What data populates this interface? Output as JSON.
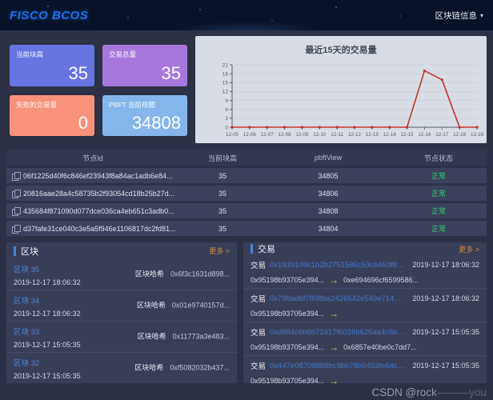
{
  "header": {
    "logo": "FISCO BCOS",
    "menu_label": "区块链信息"
  },
  "icons": {
    "chevron_down": "▾",
    "arrow_right": "→"
  },
  "stats": {
    "cards": [
      {
        "label": "当前块高",
        "value": "35",
        "color": "#6774e2"
      },
      {
        "label": "交易总量",
        "value": "35",
        "color": "#a678dd"
      },
      {
        "label": "失败的交易量",
        "value": "0",
        "color": "#f8927a"
      },
      {
        "label": "PBFT 当前视图",
        "value": "34808",
        "color": "#84b6eb"
      }
    ]
  },
  "chart_data": {
    "type": "line",
    "title": "最近15天的交易量",
    "categories": [
      "12-05",
      "12-06",
      "12-07",
      "12-08",
      "12-09",
      "12-10",
      "12-11",
      "12-12",
      "12-13",
      "12-14",
      "12-15",
      "12-16",
      "12-17",
      "12-18",
      "12-19"
    ],
    "values": [
      0,
      0,
      0,
      0,
      0,
      0,
      0,
      0,
      0,
      0,
      0,
      19,
      16,
      0,
      0
    ],
    "xlabel": "",
    "ylabel": "",
    "ylim": [
      0,
      21
    ],
    "yticks": [
      0,
      3,
      6,
      9,
      12,
      15,
      18,
      21
    ],
    "line_color": "#c23531",
    "grid": true,
    "legend": false
  },
  "node_table": {
    "columns": [
      "节点Id",
      "当前块高",
      "pbftView",
      "节点状态"
    ],
    "rows": [
      {
        "id": "06f1225d40f6c846ef23943f8a84ac1adb6e84...",
        "block_height": "35",
        "pbft_view": "34805",
        "status": "正常"
      },
      {
        "id": "20816aae28a4c58735b2f93054cd18b25b27d...",
        "block_height": "35",
        "pbft_view": "34806",
        "status": "正常"
      },
      {
        "id": "435684f871090d077dce036ca4eb651c3adb0...",
        "block_height": "35",
        "pbft_view": "34808",
        "status": "正常"
      },
      {
        "id": "d37fafe31ce040c3e5a5f946e1106817dc2fd81...",
        "block_height": "35",
        "pbft_view": "34804",
        "status": "正常"
      }
    ]
  },
  "blocks_panel": {
    "title": "区块",
    "more": "更多 >",
    "hash_label": "区块哈希",
    "items": [
      {
        "block_label": "区块 35",
        "time": "2019-12-17 18:06:32",
        "hash": "0x6f3c1631d898..."
      },
      {
        "block_label": "区块 34",
        "time": "2019-12-17 18:06:32",
        "hash": "0x01e9740157d..."
      },
      {
        "block_label": "区块 33",
        "time": "2019-12-17 15:05:35",
        "hash": "0x11773a3e483..."
      },
      {
        "block_label": "区块 32",
        "time": "2019-12-17 15:05:35",
        "hash": "0xf5082032b437..."
      }
    ]
  },
  "tx_panel": {
    "title": "交易",
    "more": "更多 >",
    "item_label": "交易",
    "items": [
      {
        "hash": "0x1939109c1b2b2751586c53cb463f8d86b6...",
        "time": "2019-12-17 18:06:32",
        "from": "0x95198b93705e394...",
        "to": "0xe694696cf6599586..."
      },
      {
        "hash": "0x798ad6f7898ba2426542e543e714a45322...",
        "time": "2019-12-17 18:06:32",
        "from": "0x95198b93705e394...",
        "to": ""
      },
      {
        "hash": "0xd984c6b6b72417f6026b625aa4c6bc7ef1...",
        "time": "2019-12-17 15:05:35",
        "from": "0x95198b93705e394...",
        "to": "0x6857e40be0c7dd7..."
      },
      {
        "hash": "0x447e08709888bc9bb78b0453fe64ccd79...",
        "time": "2019-12-17 15:05:35",
        "from": "0x95198b93705e394...",
        "to": ""
      }
    ]
  },
  "watermark": {
    "text": "CSDN @rock",
    "tail": "———you"
  }
}
